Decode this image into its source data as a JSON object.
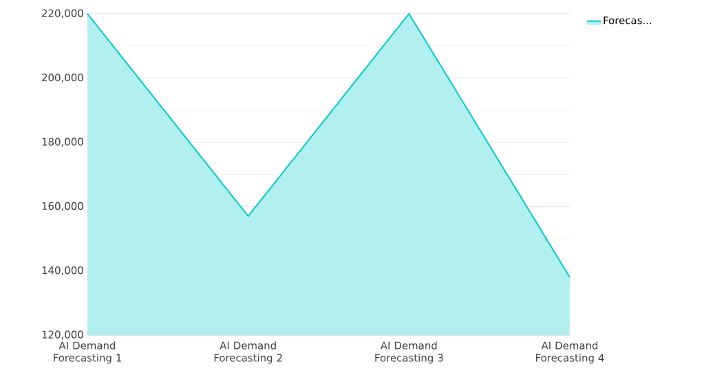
{
  "chart_data": {
    "type": "area",
    "categories": [
      "AI Demand Forecasting 1",
      "AI Demand Forecasting 2",
      "AI Demand Forecasting 3",
      "AI Demand Forecasting 4"
    ],
    "series": [
      {
        "name": "Forecas...",
        "color": "#00cccc",
        "values": [
          220000,
          157000,
          220000,
          138000
        ]
      }
    ],
    "ylim": [
      120000,
      220000
    ],
    "yticks": [
      {
        "value": 120000,
        "label": "120,000"
      },
      {
        "value": 140000,
        "label": "140,000"
      },
      {
        "value": 160000,
        "label": "160,000"
      },
      {
        "value": 180000,
        "label": "180,000"
      },
      {
        "value": 200000,
        "label": "200,000"
      },
      {
        "value": 220000,
        "label": "220,000"
      }
    ],
    "grid": "y",
    "legend": "top right"
  }
}
